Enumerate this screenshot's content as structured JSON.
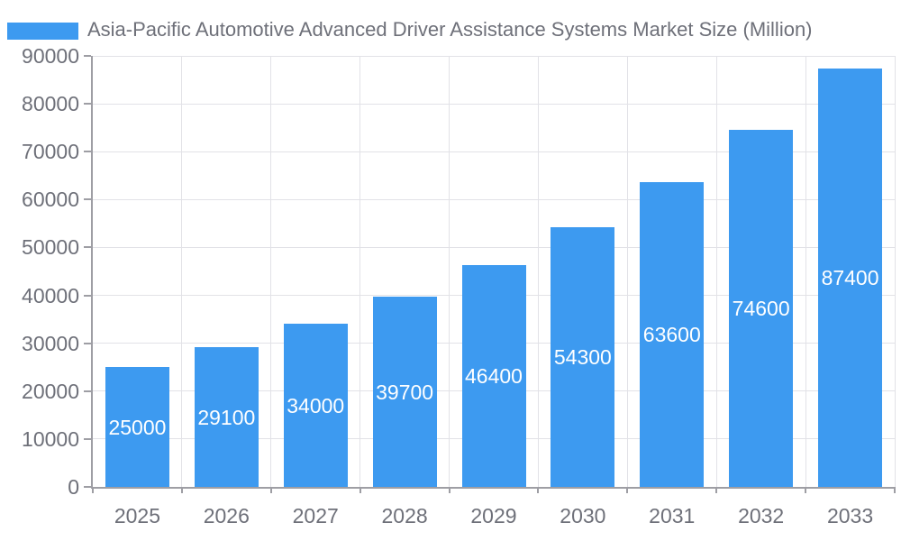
{
  "title": {
    "text": "Asia-Pacific Automotive Advanced Driver Assistance Systems Market Size (Million)"
  },
  "legend": {
    "label": "Asia-Pacific Automotive Advanced Driver Assistance Systems Market Size (Million)",
    "position": "top-left",
    "swatch_color": "#3D9AF0"
  },
  "colors": {
    "bar": "#3D9AF0",
    "grid": "#E2E2E7",
    "axis": "#9E9EA4",
    "text": "#6E7079",
    "value_label": "#FFFFFF",
    "background": "#FFFFFF"
  },
  "chart_data": {
    "type": "bar",
    "title": "Asia-Pacific Automotive Advanced Driver Assistance Systems Market Size (Million)",
    "categories": [
      "2025",
      "2026",
      "2027",
      "2028",
      "2029",
      "2030",
      "2031",
      "2032",
      "2033"
    ],
    "values": [
      25000,
      29100,
      34000,
      39700,
      46400,
      54300,
      63600,
      74600,
      87400
    ],
    "series_name": "Asia-Pacific Automotive Advanced Driver Assistance Systems Market Size (Million)",
    "xlabel": "",
    "ylabel": "",
    "ylim": [
      0,
      90000
    ],
    "ytick_interval": 10000,
    "ytick_labels": [
      "0",
      "10000",
      "20000",
      "30000",
      "40000",
      "50000",
      "60000",
      "70000",
      "80000",
      "90000"
    ],
    "grid_horizontal": true,
    "grid_vertical": true,
    "legend_position": "top-left",
    "value_labels_position": "inside-center",
    "value_labels_color": "#FFFFFF"
  }
}
